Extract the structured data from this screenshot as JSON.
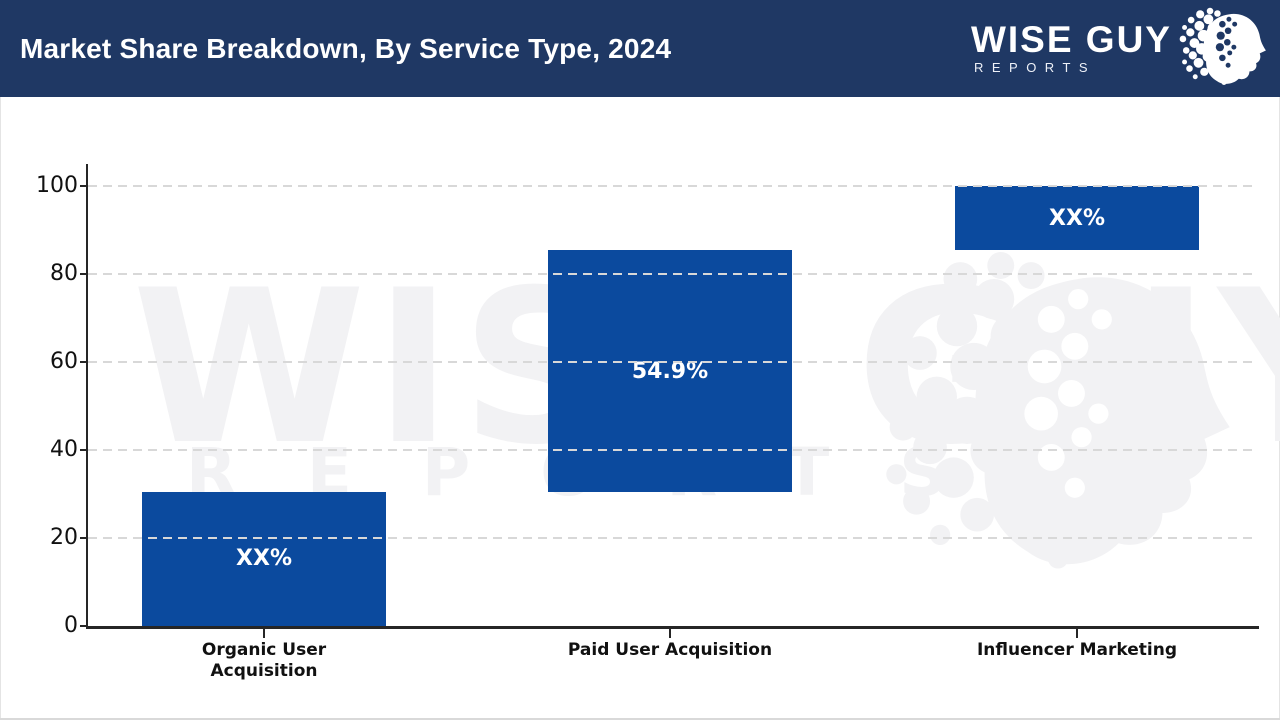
{
  "header": {
    "title": "Market Share Breakdown, By Service Type, 2024",
    "bg_color": "#1f3864",
    "logo": {
      "line1": "WISE GUY",
      "line2": "REPORTS"
    }
  },
  "watermark": {
    "line1": "WISE GUY",
    "line2": "REPORTS"
  },
  "chart_data": {
    "type": "bar",
    "subtype": "stacked-waterfall-segments",
    "title": "Market Share Breakdown, By Service Type, 2024",
    "categories": [
      "Organic User Acquisition",
      "Paid User Acquisition",
      "Influencer Marketing"
    ],
    "segments": [
      {
        "category": "Organic User Acquisition",
        "from": 0,
        "to": 30.5,
        "value_label": "XX%"
      },
      {
        "category": "Paid User Acquisition",
        "from": 30.5,
        "to": 85.4,
        "value_label": "54.9%"
      },
      {
        "category": "Influencer Marketing",
        "from": 85.4,
        "to": 100,
        "value_label": "XX%"
      }
    ],
    "values": [
      30.5,
      54.9,
      14.6
    ],
    "xlabel": "",
    "ylabel": "",
    "ylim": [
      0,
      100
    ],
    "yticks": [
      0,
      20,
      40,
      60,
      80,
      100
    ],
    "grid": "dashed horizontal, drawn over bars",
    "legend": "none",
    "bar_color": "#0b4a9e",
    "value_label_color": "#ffffff",
    "axis_color": "#262626",
    "gridline_color": "#d8d8d8"
  }
}
